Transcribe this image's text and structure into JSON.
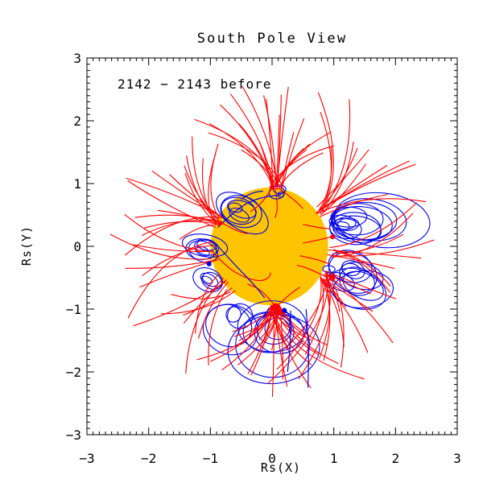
{
  "chart_data": {
    "type": "field_line_plot",
    "title": "South Pole View",
    "annotation": "2142 − 2143 before",
    "xlabel": "Rs(X)",
    "ylabel": "Rs(Y)",
    "xlim": [
      -3,
      3
    ],
    "ylim": [
      -3,
      3
    ],
    "x_tick_labels": [
      "−3",
      "−2",
      "−1",
      "0",
      "1",
      "2",
      "3"
    ],
    "y_tick_labels": [
      "−3",
      "−2",
      "−1",
      "0",
      "1",
      "2",
      "3"
    ],
    "major_tick_step": 1,
    "minor_ticks_per_major": 10,
    "grid": false,
    "colors": {
      "background": "#FFFFFF",
      "frame": "#000000",
      "sun_disk": "#FFC400",
      "open_field_line": "#FF0000",
      "closed_field_line": "#0000E8"
    },
    "sun": {
      "center_rs": [
        -0.045,
        0.0
      ],
      "radius_rs": 0.945
    },
    "seed": 20,
    "open_bundles": [
      {
        "name": "top-fan",
        "foot": 86,
        "footJit": 6,
        "fan": [
          58,
          122
        ],
        "r0": [
          0.9,
          1.0
        ],
        "r1": [
          1.6,
          2.6
        ],
        "count": 22,
        "bend": 0.35
      },
      {
        "name": "top-right-fan",
        "foot": 36,
        "footJit": 5,
        "fan": [
          18,
          72
        ],
        "r0": [
          0.88,
          1.0
        ],
        "r1": [
          1.8,
          2.7
        ],
        "count": 13,
        "bend": 0.3
      },
      {
        "name": "upper-left-fan",
        "foot": 156,
        "footJit": 6,
        "fan": [
          118,
          182
        ],
        "r0": [
          0.9,
          1.0
        ],
        "r1": [
          1.5,
          2.7
        ],
        "count": 17,
        "bend": 0.3
      },
      {
        "name": "left-fan",
        "foot": 184,
        "footJit": 10,
        "fan": [
          168,
          205
        ],
        "r0": [
          0.9,
          1.0
        ],
        "r1": [
          2.1,
          2.7
        ],
        "count": 7,
        "bend": 0.2
      },
      {
        "name": "lower-left-fan",
        "foot": 218,
        "footJit": 12,
        "fan": [
          203,
          242
        ],
        "r0": [
          0.9,
          1.0
        ],
        "r1": [
          1.7,
          2.6
        ],
        "count": 9,
        "bend": 0.25
      },
      {
        "name": "bottom-fan",
        "foot": 273,
        "footJit": 5,
        "fan": [
          237,
          303
        ],
        "r0": [
          0.92,
          1.0
        ],
        "r1": [
          1.5,
          2.6
        ],
        "count": 26,
        "bend": 0.3
      },
      {
        "name": "lower-right-fan",
        "foot": 331,
        "footJit": 5,
        "fan": [
          268,
          338
        ],
        "r0": [
          0.9,
          1.0
        ],
        "r1": [
          1.5,
          2.5
        ],
        "count": 16,
        "bend": 0.35
      },
      {
        "name": "right-fan",
        "foot": 356,
        "footJit": 8,
        "fan": [
          338,
          378
        ],
        "r0": [
          0.9,
          1.0
        ],
        "r1": [
          2.0,
          2.65
        ],
        "count": 8,
        "bend": 0.2
      }
    ],
    "loop_clusters": [
      {
        "name": "right-upper-arcade",
        "mode": "anchor",
        "a": [
          0.98,
          0.38
        ],
        "dir": -3,
        "w": [
          0.25,
          1.35
        ],
        "hr": [
          0.5,
          0.62
        ],
        "count": 12,
        "rot": 0,
        "rotJit": 6,
        "aj": 0.12
      },
      {
        "name": "right-lower-arcade",
        "mode": "anchor",
        "a": [
          0.98,
          -0.42
        ],
        "dir": -12,
        "w": [
          0.2,
          1.05
        ],
        "hr": [
          0.55,
          0.75
        ],
        "count": 11,
        "rot": 0,
        "rotJit": 18,
        "aj": 0.18
      },
      {
        "name": "bottom-arcade",
        "mode": "anchor",
        "a": [
          0.0,
          -1.0
        ],
        "dir": -90,
        "w": [
          0.35,
          1.15
        ],
        "hr": [
          1.1,
          1.5
        ],
        "count": 7,
        "rot": 0,
        "rotJit": 8,
        "aj": 0.15
      },
      {
        "name": "bottom-left-arcade",
        "mode": "anchor",
        "a": [
          -0.5,
          -1.02
        ],
        "dir": -115,
        "w": [
          0.25,
          0.8
        ],
        "hr": [
          0.9,
          1.3
        ],
        "count": 4,
        "rot": 0,
        "rotJit": 10,
        "aj": 0.1
      },
      {
        "name": "upper-left-disk-loops",
        "mode": "center",
        "c": [
          -0.55,
          0.55
        ],
        "rx": [
          0.1,
          0.42
        ],
        "ry": [
          0.07,
          0.27
        ],
        "rot": -25,
        "rotJit": 10,
        "cj": 0.08,
        "count": 6
      },
      {
        "name": "left-limb-loops",
        "mode": "center",
        "c": [
          -1.1,
          -0.03
        ],
        "rx": [
          0.06,
          0.2
        ],
        "ry": [
          0.1,
          0.32
        ],
        "rot": 75,
        "rotJit": 12,
        "cj": 0.06,
        "count": 6
      },
      {
        "name": "lower-left-limb-loops",
        "mode": "center",
        "c": [
          -1.0,
          -0.5
        ],
        "rx": [
          0.05,
          0.18
        ],
        "ry": [
          0.08,
          0.25
        ],
        "rot": 55,
        "rotJit": 15,
        "cj": 0.07,
        "count": 4
      },
      {
        "name": "top-small-loops",
        "mode": "center",
        "c": [
          0.1,
          0.87
        ],
        "rx": [
          0.05,
          0.13
        ],
        "ry": [
          0.04,
          0.1
        ],
        "rot": 0,
        "rotJit": 15,
        "cj": 0.05,
        "count": 3
      }
    ],
    "extra_lines": [
      {
        "color": "open",
        "pts": [
          [
            -0.97,
            -0.08
          ],
          [
            -0.75,
            -0.32
          ],
          [
            -0.45,
            -0.5
          ],
          [
            -0.18,
            -0.56
          ],
          [
            -0.05,
            -0.5
          ],
          [
            -0.02,
            -0.42
          ]
        ]
      },
      {
        "color": "open",
        "pts": [
          [
            0.0,
            0.93
          ],
          [
            -0.15,
            0.7
          ],
          [
            -0.35,
            0.55
          ]
        ]
      },
      {
        "color": "open",
        "pts": [
          [
            0.05,
            0.92
          ],
          [
            0.1,
            0.65
          ],
          [
            0.05,
            0.45
          ]
        ]
      },
      {
        "color": "open",
        "pts": [
          [
            0.1,
            0.93
          ],
          [
            0.35,
            0.75
          ],
          [
            0.5,
            0.6
          ]
        ]
      },
      {
        "color": "open",
        "pts": [
          [
            0.05,
            -0.95
          ],
          [
            -0.15,
            -0.7
          ],
          [
            -0.4,
            -0.6
          ]
        ]
      },
      {
        "color": "open",
        "pts": [
          [
            0.08,
            -0.95
          ],
          [
            0.3,
            -0.75
          ],
          [
            0.45,
            -0.65
          ]
        ]
      },
      {
        "color": "open",
        "pts": [
          [
            0.9,
            -0.5
          ],
          [
            0.6,
            -0.35
          ],
          [
            0.4,
            -0.3
          ]
        ]
      },
      {
        "color": "open",
        "pts": [
          [
            -0.82,
            0.38
          ],
          [
            -0.6,
            0.25
          ],
          [
            -0.4,
            0.2
          ]
        ]
      },
      {
        "color": "open",
        "pts": [
          [
            0.5,
            0.05
          ],
          [
            0.75,
            0.1
          ],
          [
            0.95,
            0.15
          ]
        ]
      },
      {
        "color": "open",
        "pts": [
          [
            0.45,
            -0.15
          ],
          [
            0.7,
            -0.2
          ],
          [
            0.93,
            -0.28
          ]
        ]
      },
      {
        "color": "open",
        "pts": [
          [
            0.5,
            0.35
          ],
          [
            0.72,
            0.3
          ],
          [
            0.94,
            0.28
          ]
        ]
      },
      {
        "color": "closed",
        "pts": [
          [
            -0.88,
            0.3
          ],
          [
            -0.55,
            0.62
          ],
          [
            -0.2,
            0.78
          ],
          [
            0.15,
            0.82
          ]
        ]
      },
      {
        "color": "closed",
        "pts": [
          [
            -0.92,
            0.05
          ],
          [
            -0.6,
            -0.3
          ],
          [
            -0.3,
            -0.6
          ],
          [
            -0.12,
            -0.82
          ]
        ]
      },
      {
        "color": "closed",
        "pts": [
          [
            -0.5,
            0.75
          ],
          [
            -0.35,
            0.85
          ],
          [
            -0.15,
            0.88
          ]
        ]
      },
      {
        "color": "closed",
        "pts": [
          [
            0.55,
            -1.0
          ],
          [
            0.6,
            -1.6
          ],
          [
            0.58,
            -2.25
          ]
        ]
      },
      {
        "color": "closed",
        "pts": [
          [
            0.3,
            -1.02
          ],
          [
            0.3,
            -1.55
          ],
          [
            0.25,
            -2.0
          ]
        ]
      },
      {
        "color": "closed",
        "pts": [
          [
            0.18,
            -0.98
          ],
          [
            0.3,
            -1.1
          ],
          [
            0.28,
            -1.25
          ]
        ]
      },
      {
        "color": "closed",
        "pts": [
          [
            -0.05,
            -0.98
          ],
          [
            -0.15,
            -1.15
          ]
        ]
      }
    ],
    "foot_blobs": [
      {
        "color": "open",
        "x": 0.06,
        "y": -0.97,
        "r": 5
      },
      {
        "color": "open",
        "x": 0.14,
        "y": -1.05,
        "r": 4
      },
      {
        "color": "open",
        "x": 0.0,
        "y": 0.94,
        "r": 3
      },
      {
        "color": "open",
        "x": -0.84,
        "y": 0.37,
        "r": 3
      },
      {
        "color": "open",
        "x": 0.97,
        "y": -0.5,
        "r": 4
      },
      {
        "color": "open",
        "x": 0.98,
        "y": 0.15,
        "r": 3
      },
      {
        "color": "closed",
        "x": -1.02,
        "y": -0.28,
        "r": 3
      },
      {
        "color": "closed",
        "x": 0.2,
        "y": -1.02,
        "r": 3
      }
    ]
  }
}
